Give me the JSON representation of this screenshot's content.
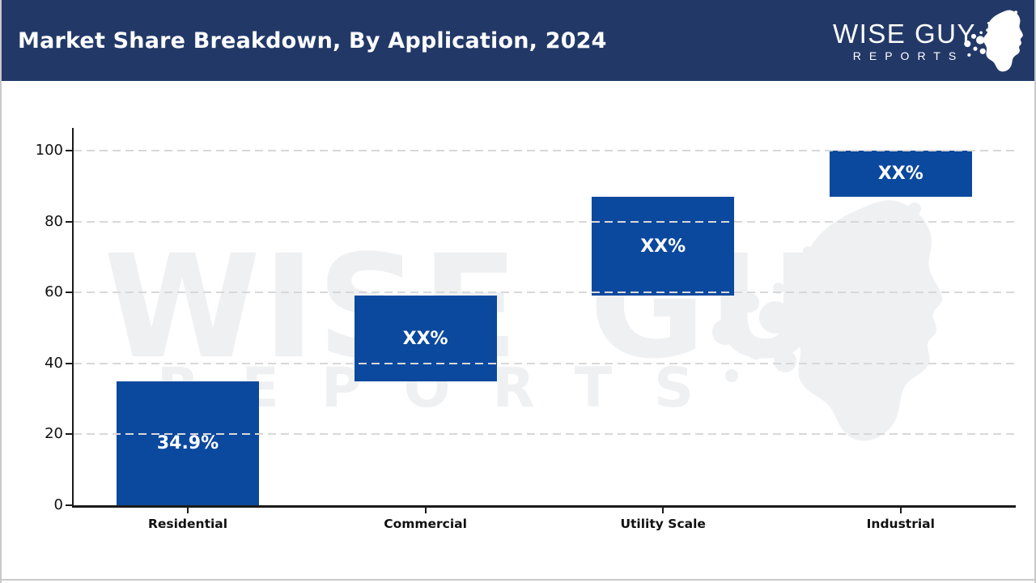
{
  "header": {
    "title": "Market Share Breakdown, By Application, 2024",
    "logo": {
      "brand": "WISE GUY",
      "sub": "REPORTS"
    }
  },
  "watermark": {
    "brand": "WISE GUY",
    "sub": "REPORTS"
  },
  "chart_data": {
    "type": "bar",
    "subtype": "waterfall",
    "title": "Market Share Breakdown, By Application, 2024",
    "categories": [
      "Residential",
      "Commercial",
      "Utility Scale",
      "Industrial"
    ],
    "bars": [
      {
        "category": "Residential",
        "start": 0,
        "end": 34.9,
        "label": "34.9%"
      },
      {
        "category": "Commercial",
        "start": 34.9,
        "end": 59,
        "label": "XX%"
      },
      {
        "category": "Utility Scale",
        "start": 59,
        "end": 87,
        "label": "XX%"
      },
      {
        "category": "Industrial",
        "start": 87,
        "end": 100,
        "label": "XX%"
      }
    ],
    "yticks": [
      0,
      20,
      40,
      60,
      80,
      100
    ],
    "ylim": [
      0,
      106
    ],
    "xlabel": "",
    "ylabel": "",
    "grid": {
      "axis": "y",
      "style": "dashed",
      "color": "#d8d8d8",
      "drawn_over_bars": true
    },
    "legend": null,
    "bar_color": "#0b499e",
    "value_label_color": "#ffffff"
  },
  "colors": {
    "header_bg": "#223968",
    "bar": "#0b499e",
    "axis": "#1a1a1a",
    "grid": "#d8d8d8",
    "watermark": "#eff0f2"
  }
}
